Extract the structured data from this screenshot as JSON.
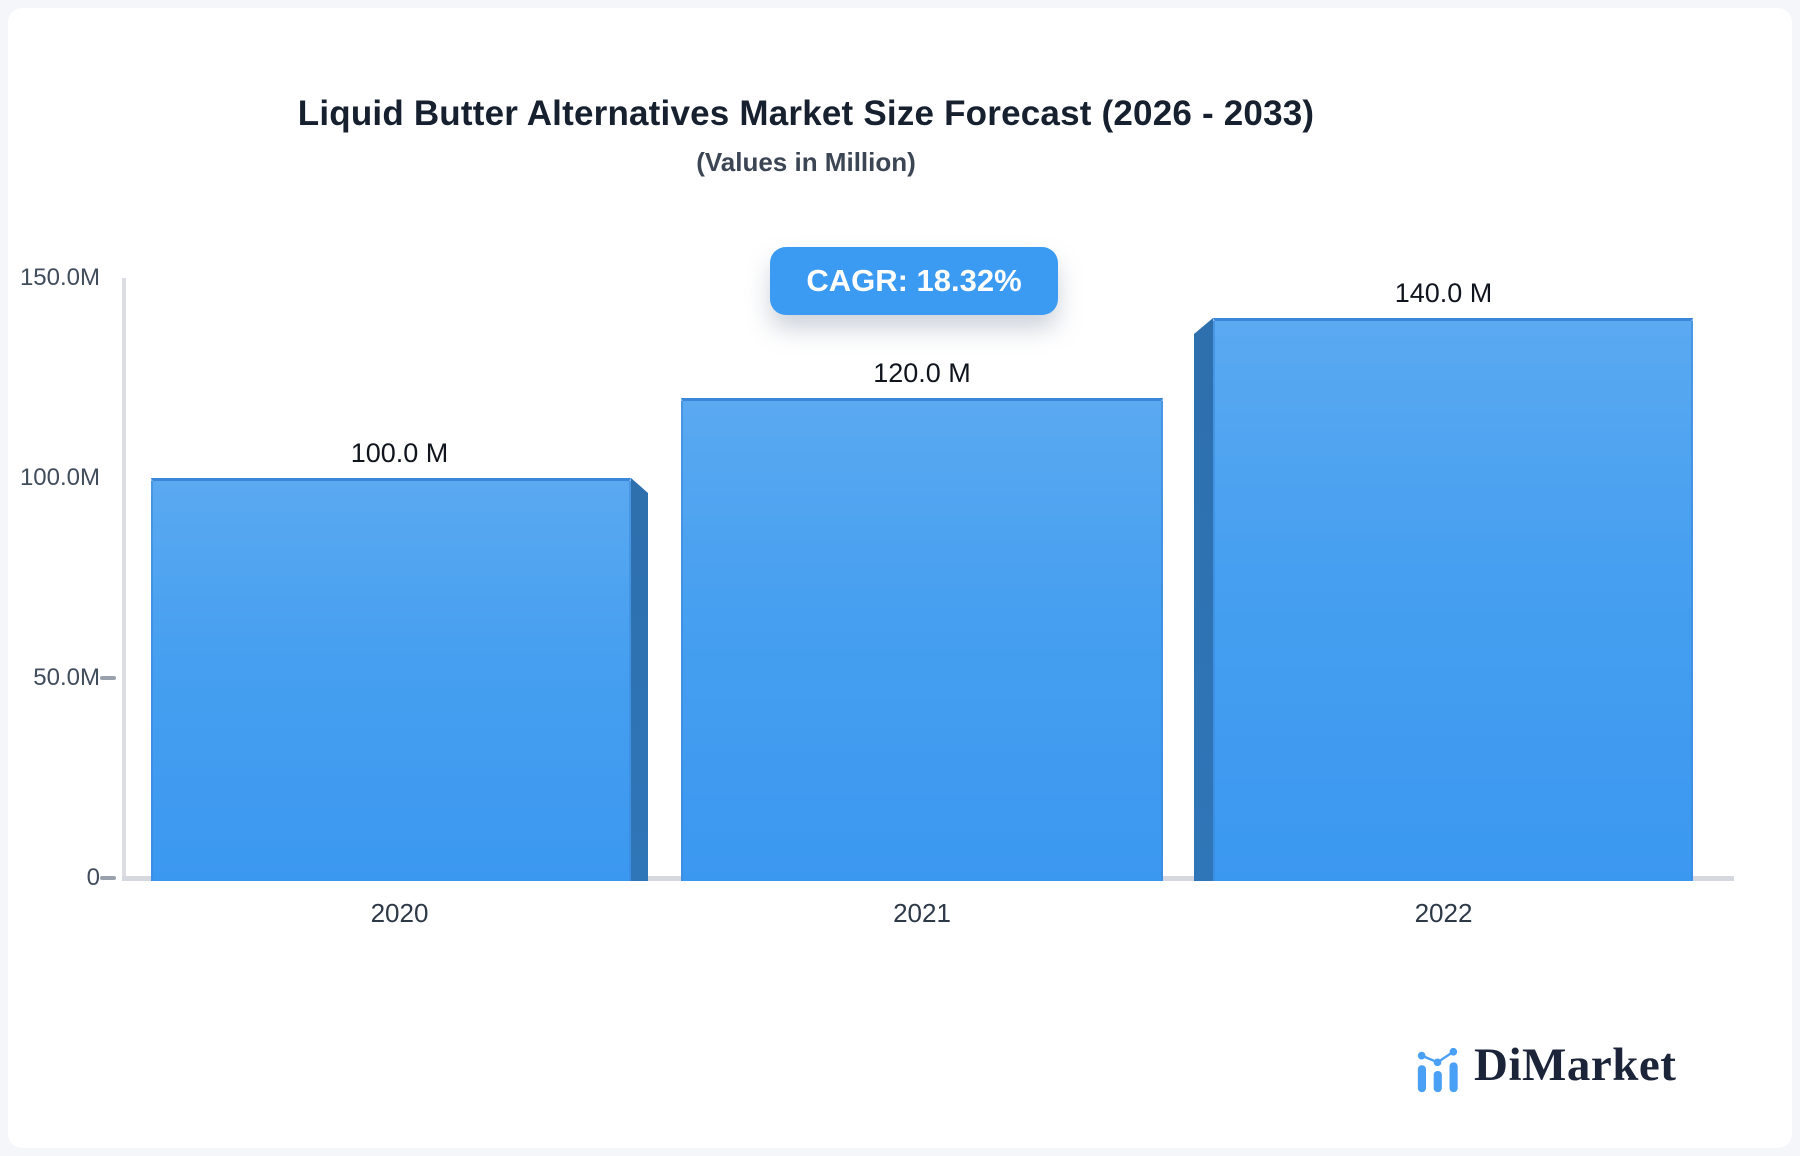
{
  "page": {
    "background": "#f4f6f9",
    "card_background": "#ffffff"
  },
  "header": {
    "title": "Liquid Butter Alternatives Market Size Forecast (2026 - 2033)",
    "subtitle": "(Values in Million)"
  },
  "badge": {
    "label": "CAGR: 18.32%",
    "bg_color": "#3b9af1",
    "text_color": "#ffffff"
  },
  "chart_data": {
    "type": "bar",
    "title": "Liquid Butter Alternatives Market Size Forecast (2026 - 2033)",
    "subtitle": "(Values in Million)",
    "unit": "Million",
    "cagr_label": "CAGR: 18.32%",
    "categories": [
      "2020",
      "2021",
      "2022"
    ],
    "values": [
      100,
      120,
      140
    ],
    "value_labels": [
      "100.0 M",
      "120.0 M",
      "140.0 M"
    ],
    "ylim": [
      0,
      150
    ],
    "grid": "off",
    "legend": "none",
    "effect": "pseudo-3d side extrusion toward center",
    "y_ticks": [
      {
        "label": "150.0M",
        "value": 150,
        "dash": false
      },
      {
        "label": "100.0M",
        "value": 100,
        "dash": false
      },
      {
        "label": "50.0M",
        "value": 50,
        "dash": true
      },
      {
        "label": "0",
        "value": 0,
        "dash": true
      }
    ],
    "colors": {
      "bar_top": "#5aa9f1",
      "bar_bottom": "#3b98f0",
      "bar_border": "#3a86d8",
      "bar_side_face": "#2e6fad",
      "axis_line": "#dbdde2",
      "baseline": "#d5d8de",
      "tick": "#99a1ad"
    }
  },
  "logo": {
    "text": "DiMarket",
    "icon": "mini-bar-chart-icon",
    "text_color": "#1b2438",
    "icon_color": "#4aa0f4"
  }
}
